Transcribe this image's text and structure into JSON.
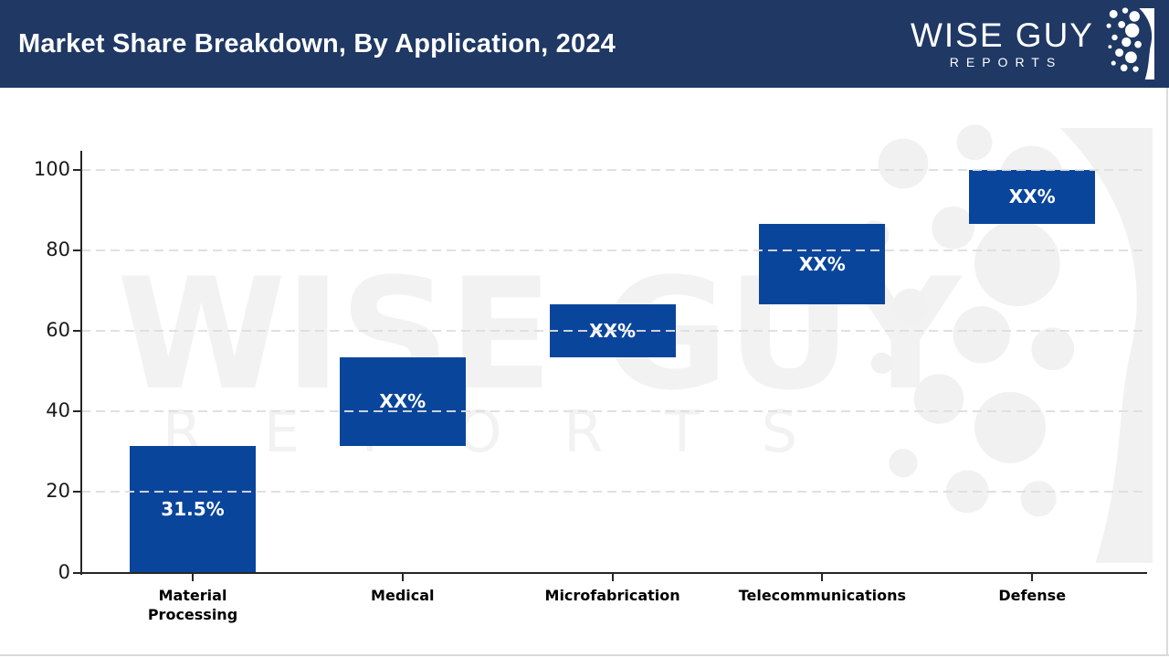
{
  "header": {
    "title": "Market Share Breakdown, By Application, 2024",
    "bg_color": "#1F3864",
    "logo": {
      "line1": "WISE GUY",
      "line2": "REPORTS"
    }
  },
  "watermark": {
    "line1": "WISE GUY",
    "line2": "R E P O R T S"
  },
  "chart_data": {
    "type": "bar",
    "subtype": "waterfall",
    "title": "Market Share Breakdown, By Application, 2024",
    "categories": [
      "Material\nProcessing",
      "Medical",
      "Microfabrication",
      "Telecommunications",
      "Defense"
    ],
    "values": [
      31.5,
      22,
      13,
      20,
      13.5
    ],
    "cumulative_start": [
      0,
      31.5,
      53.5,
      66.5,
      86.5
    ],
    "cumulative_end": [
      31.5,
      53.5,
      66.5,
      86.5,
      100
    ],
    "bar_labels": [
      "31.5%",
      "XX%",
      "XX%",
      "XX%",
      "XX%"
    ],
    "xlabel": "",
    "ylabel": "",
    "ylim": [
      0,
      100
    ],
    "yticks": [
      0,
      20,
      40,
      60,
      80,
      100
    ],
    "grid": "horizontal-dashed",
    "legend": "none",
    "bar_color": "#0A459C",
    "bar_label_color": "#ffffff",
    "axis_color": "#262626",
    "grid_color": "#e0e0e0"
  }
}
